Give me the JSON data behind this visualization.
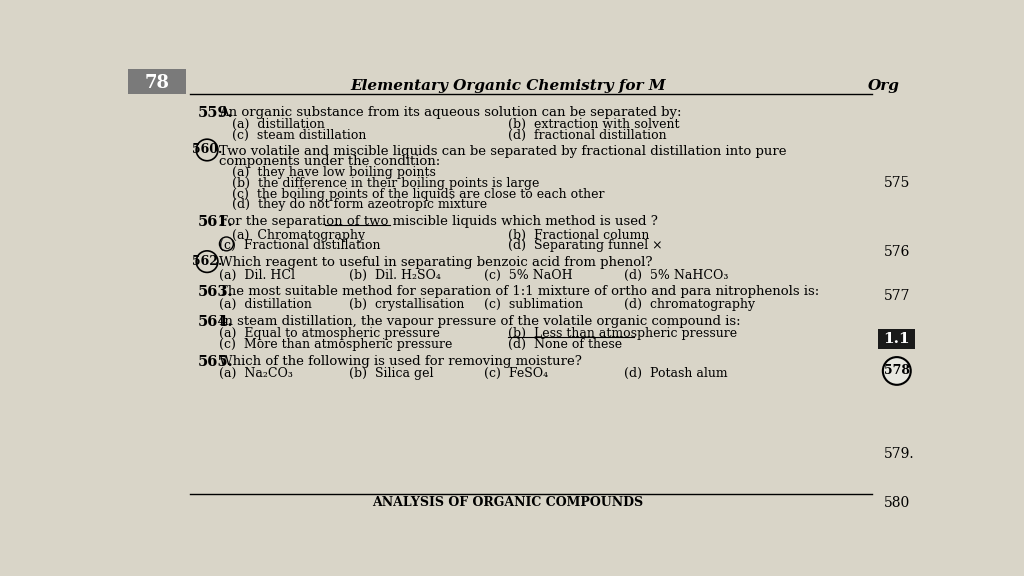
{
  "bg_color": "#d9d5c8",
  "page_num": "78",
  "header_title": "Elementary Organic Chemistry for M",
  "header_right": "Org",
  "right_box": "1.1",
  "right_circle": "578",
  "bottom_num": "580"
}
